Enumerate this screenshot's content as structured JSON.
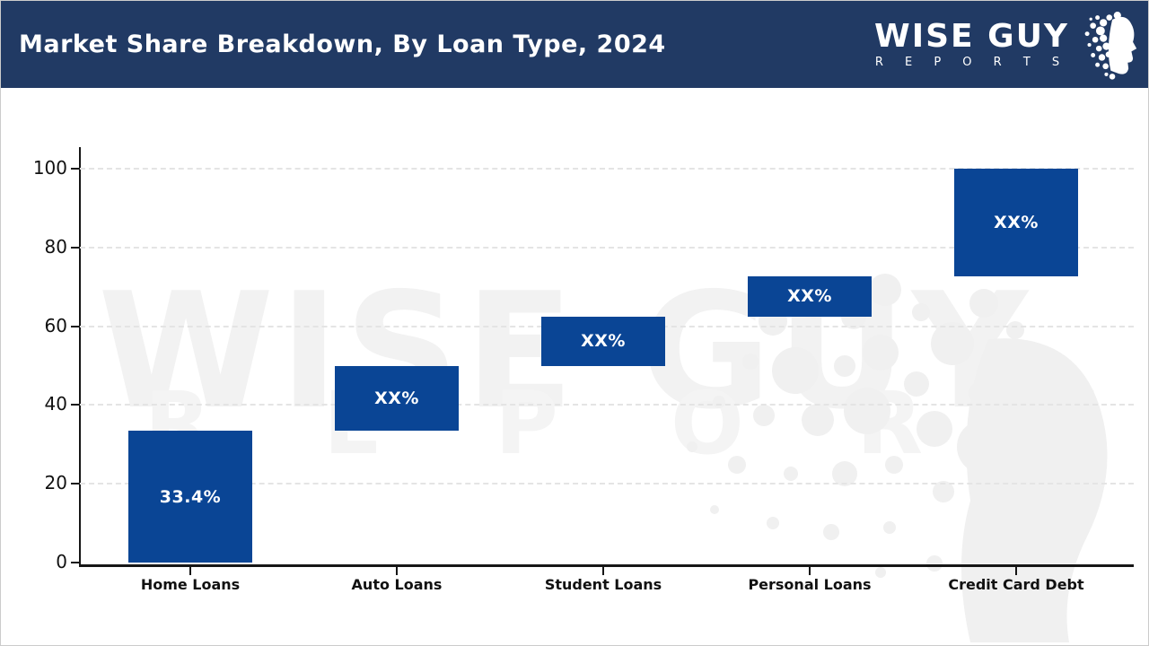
{
  "header": {
    "title": "Market Share Breakdown, By Loan Type, 2024",
    "logo": {
      "line1": "WISE GUY",
      "line2": "R E P O R T S"
    }
  },
  "watermark": {
    "line1": "WISE GUY",
    "line2": "R E P O R T S"
  },
  "colors": {
    "header_bg": "#213a64",
    "bar": "#0a4595",
    "bar_label_text": "#ffffff",
    "axis": "#161616",
    "gridline": "#e4e4e4",
    "watermark": "#f2f2f2"
  },
  "chart_data": {
    "type": "bar",
    "subtype": "waterfall",
    "title": "Market Share Breakdown, By Loan Type, 2024",
    "xlabel": "",
    "ylabel": "",
    "categories": [
      "Home Loans",
      "Auto Loans",
      "Student Loans",
      "Personal Loans",
      "Credit Card Debt"
    ],
    "segments": [
      {
        "category": "Home Loans",
        "start": 0,
        "end": 33.4,
        "value": 33.4,
        "label": "33.4%"
      },
      {
        "category": "Auto Loans",
        "start": 33.4,
        "end": 50.0,
        "value": 16.6,
        "label": "XX%"
      },
      {
        "category": "Student Loans",
        "start": 50.0,
        "end": 62.5,
        "value": 12.5,
        "label": "XX%"
      },
      {
        "category": "Personal Loans",
        "start": 62.5,
        "end": 72.7,
        "value": 10.2,
        "label": "XX%"
      },
      {
        "category": "Credit Card Debt",
        "start": 72.7,
        "end": 100.0,
        "value": 27.3,
        "label": "XX%"
      }
    ],
    "yticks": [
      0,
      20,
      40,
      60,
      80,
      100
    ],
    "ylim": [
      0,
      106
    ],
    "grid": "horizontal dashed",
    "legend": "none"
  }
}
